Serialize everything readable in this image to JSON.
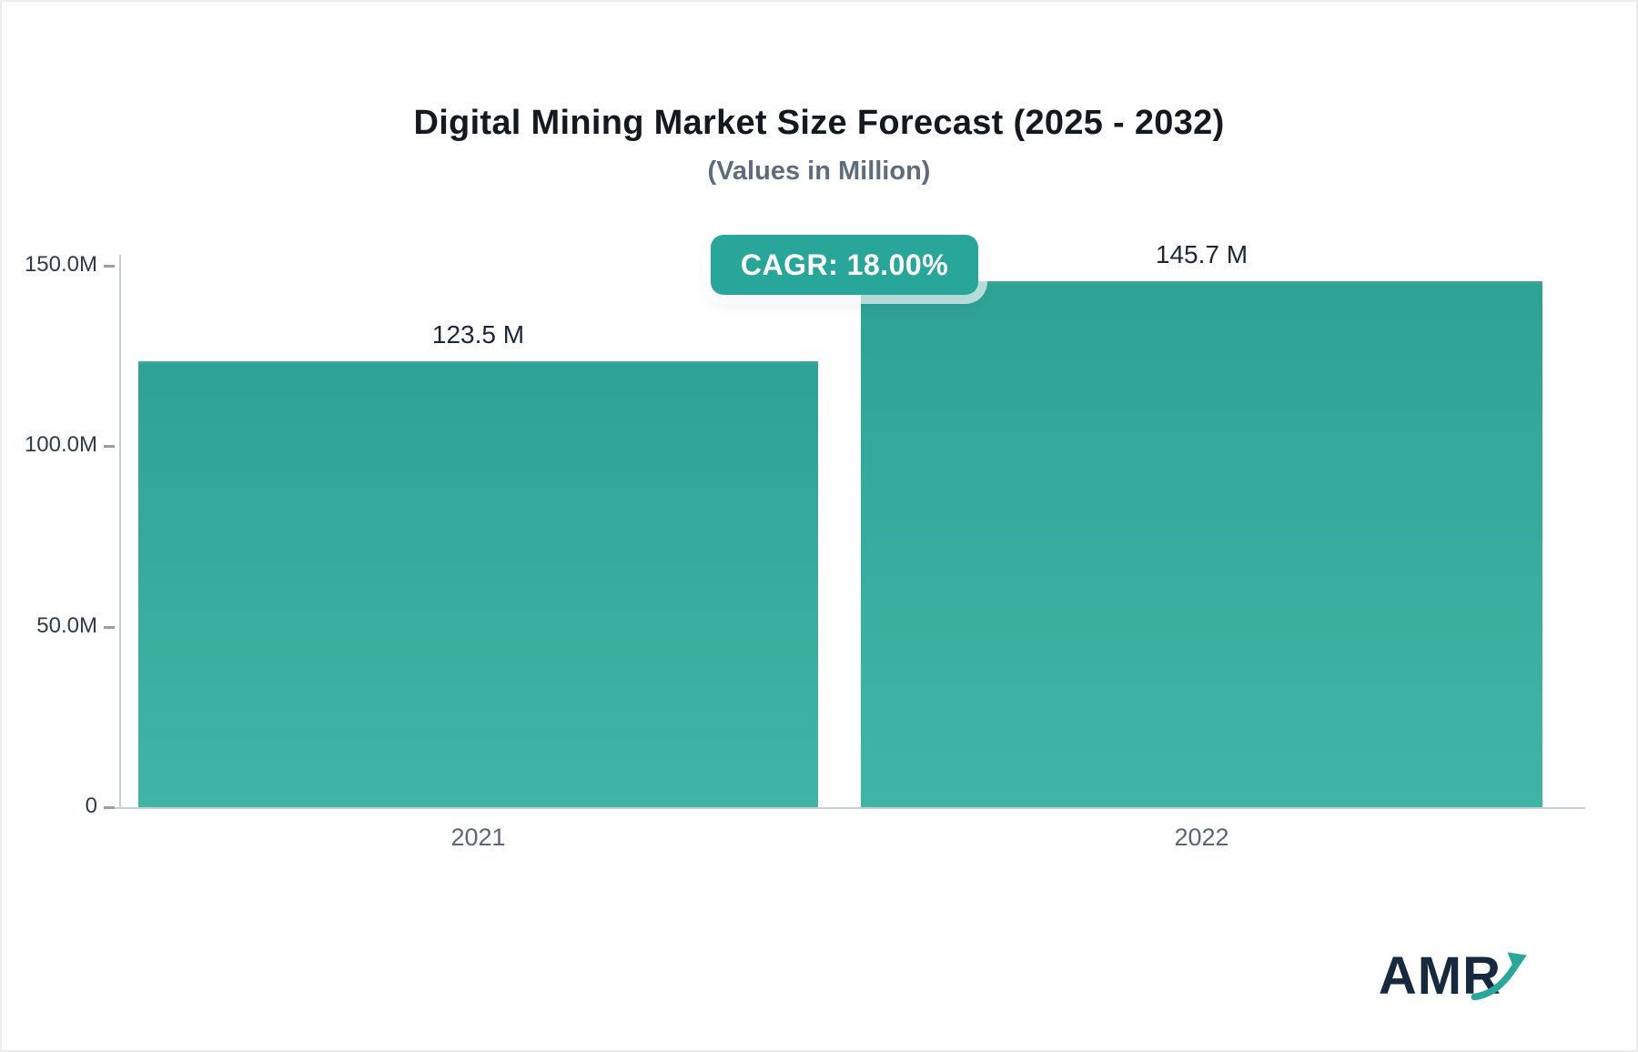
{
  "chart_data": {
    "type": "bar",
    "title": "Digital Mining Market Size Forecast (2025 - 2032)",
    "subtitle": "(Values in Million)",
    "categories": [
      "2021",
      "2022"
    ],
    "values": [
      123.5,
      145.7
    ],
    "value_labels": [
      "123.5 M",
      "145.7 M"
    ],
    "ylim": [
      0,
      150
    ],
    "y_ticks": [
      {
        "label": "150.0M",
        "value": 150
      },
      {
        "label": "100.0M",
        "value": 100
      },
      {
        "label": "50.0M",
        "value": 50
      },
      {
        "label": "0",
        "value": 0
      }
    ],
    "xlabel": "",
    "ylabel": "",
    "grid": false,
    "legend": false,
    "bar_gradient_top": "#2ea295",
    "bar_gradient_bottom": "#41b5a5"
  },
  "cagr_badge": {
    "label": "CAGR: 18.00%",
    "bg_color": "#29a69a",
    "text_color": "#ffffff"
  },
  "logo": {
    "text": "AMR",
    "text_color": "#16293e",
    "arrow_color": "#2aa79b"
  }
}
